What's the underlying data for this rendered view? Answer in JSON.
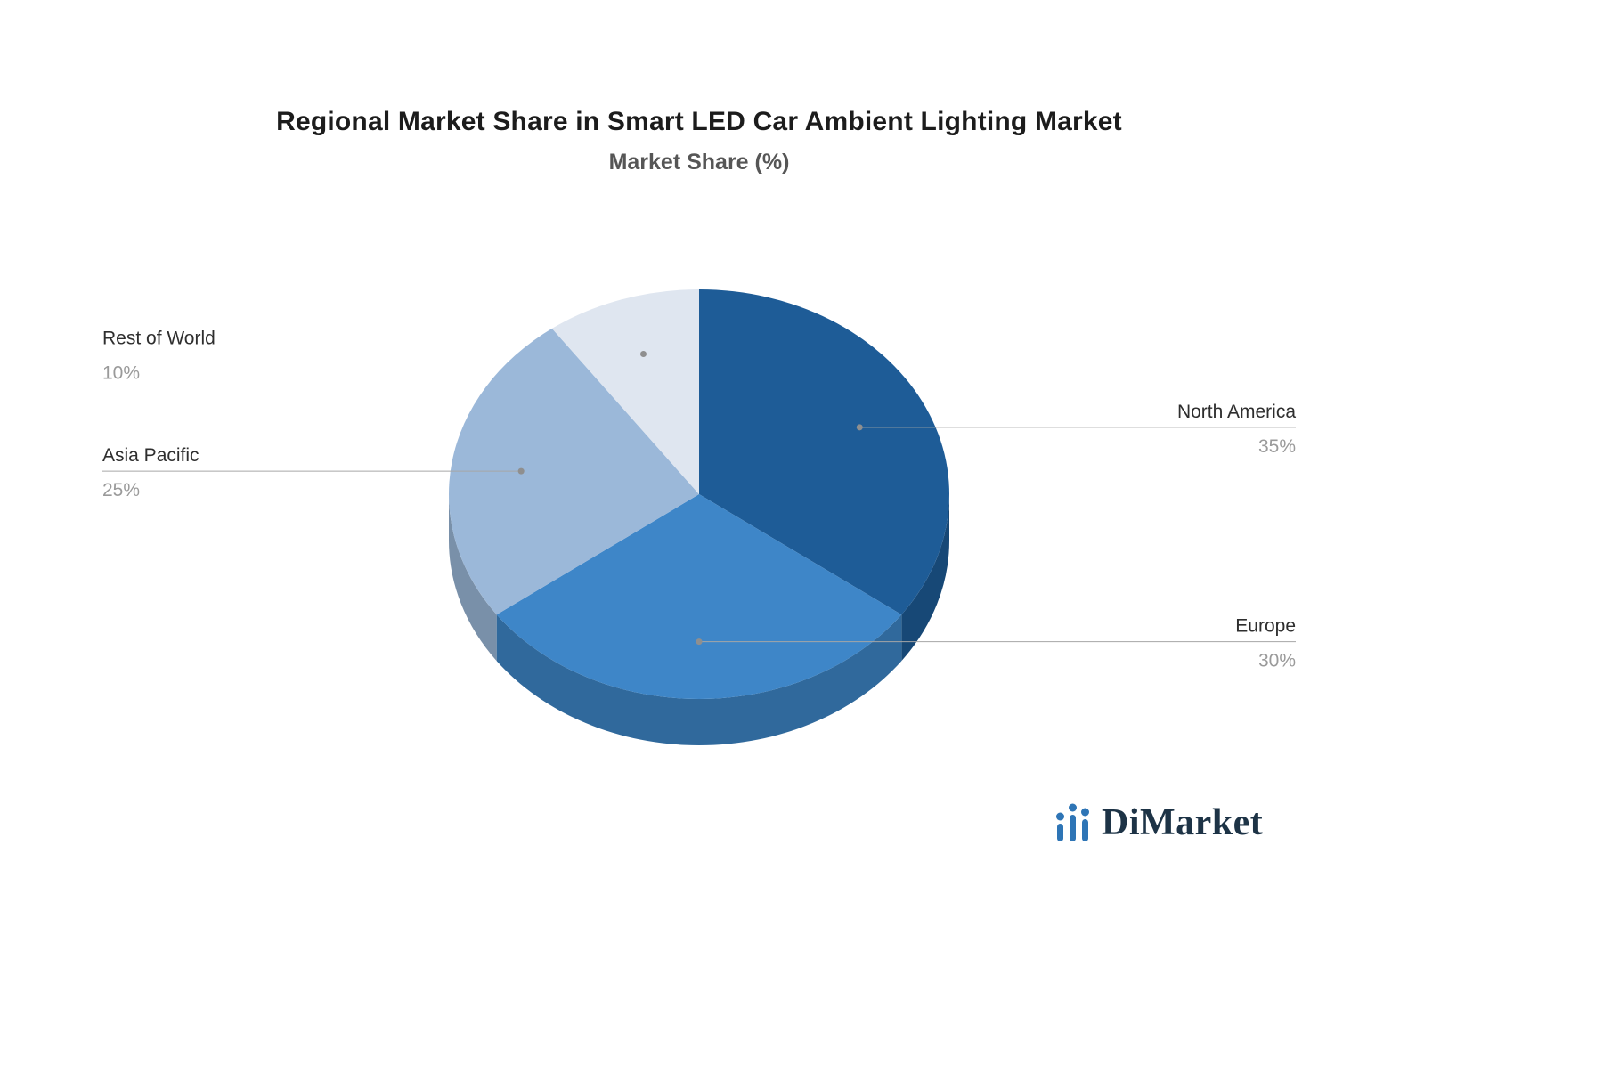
{
  "header": {
    "title": "Regional Market Share in Smart LED Car Ambient Lighting Market",
    "subtitle": "Market Share (%)"
  },
  "chart_data": {
    "type": "pie",
    "style": "3d",
    "title": "Regional Market Share in Smart LED Car Ambient Lighting Market",
    "subtitle": "Market Share (%)",
    "unit": "%",
    "total": 100,
    "clockwise": true,
    "start_angle_deg": 0,
    "legend_position": "none",
    "labels_outside": true,
    "slices": [
      {
        "label": "North America",
        "value": 35,
        "display": "35%",
        "color": "#1e5c97"
      },
      {
        "label": "Europe",
        "value": 30,
        "display": "30%",
        "color": "#3e86c8"
      },
      {
        "label": "Asia Pacific",
        "value": 25,
        "display": "25%",
        "color": "#9bb8d9"
      },
      {
        "label": "Rest of World",
        "value": 10,
        "display": "10%",
        "color": "#dfe6f0"
      }
    ],
    "label_style": {
      "name_color": "#2e2e2e",
      "value_color": "#9a9a9a",
      "leader_line_color": "#a6a6a6",
      "leader_dot_color": "#8f8f8f"
    }
  },
  "branding": {
    "logo_text": "DiMarket",
    "logo_color": "#1d3346",
    "icon_color": "#2e75b6"
  }
}
